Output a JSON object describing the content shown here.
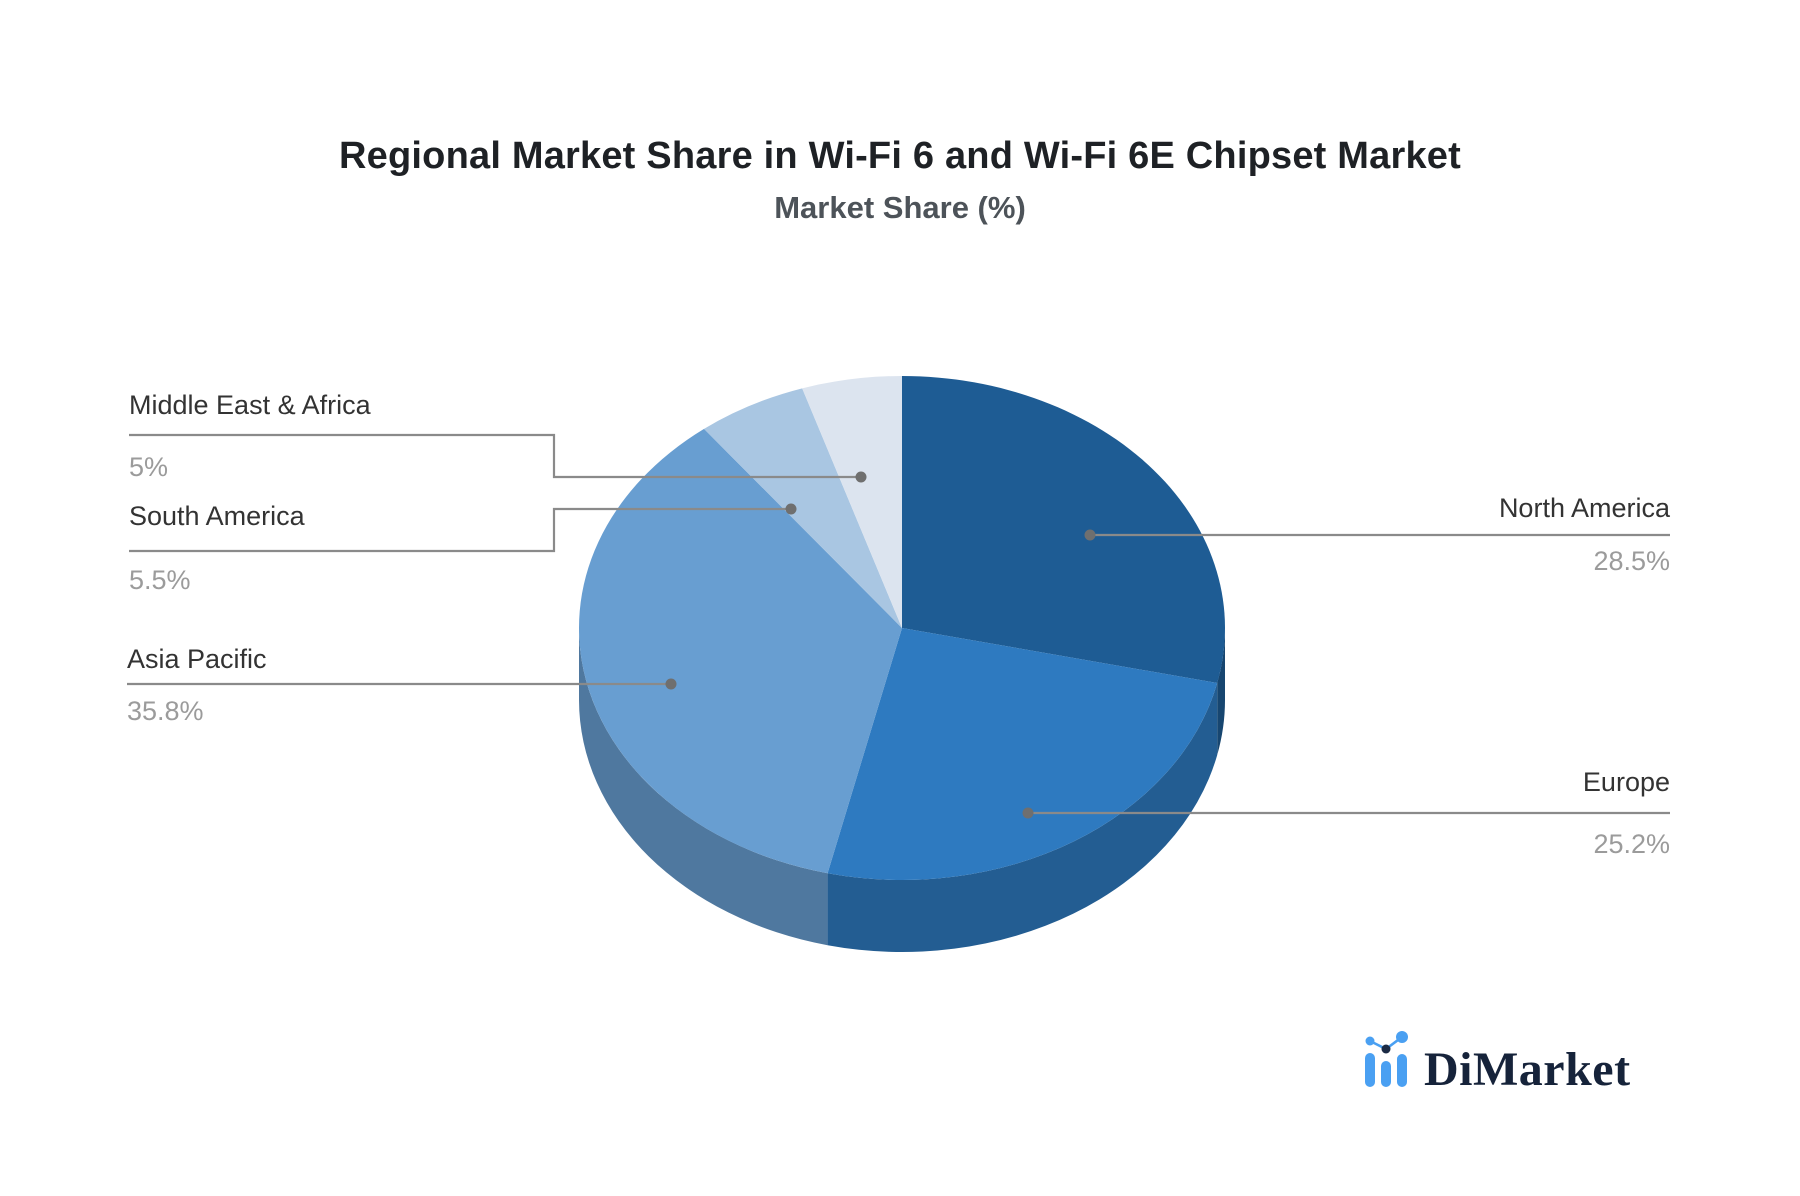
{
  "chart_data": {
    "type": "pie",
    "style": "3d",
    "title": "Regional Market Share in Wi-Fi 6 and Wi-Fi 6E Chipset Market",
    "subtitle": "Market Share (%)",
    "unit": "%",
    "start_angle": "12-o-clock",
    "direction": "clockwise",
    "legend_position": "callout-labels",
    "slices": [
      {
        "label": "North America",
        "value": 28.5,
        "display_value": "28.5%",
        "color": "#1e5c94"
      },
      {
        "label": "Europe",
        "value": 25.2,
        "display_value": "25.2%",
        "color": "#2e7ac0"
      },
      {
        "label": "Asia Pacific",
        "value": 35.8,
        "display_value": "35.8%",
        "color": "#689ed1"
      },
      {
        "label": "South America",
        "value": 5.5,
        "display_value": "5.5%",
        "color": "#a9c6e2"
      },
      {
        "label": "Middle East & Africa",
        "value": 5,
        "display_value": "5%",
        "color": "#dce4ef"
      }
    ],
    "callout_line_color": "#8a8a8a",
    "label_color": "#333333",
    "value_color": "#9b9b9b"
  },
  "logo": {
    "text": "DiMarket",
    "icon": "bar-line-chart-icon",
    "icon_color": "#4aa0f2",
    "icon_dot_color": "#1b2b45",
    "text_color": "#16233a"
  }
}
